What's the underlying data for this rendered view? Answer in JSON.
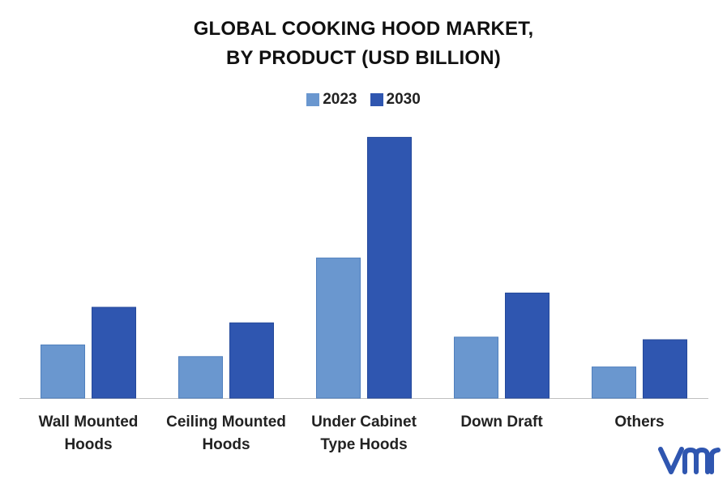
{
  "title": [
    "GLOBAL COOKING HOOD MARKET,",
    "BY PRODUCT (USD BILLION)"
  ],
  "legend": [
    {
      "label": "2023",
      "color": "#6a97cf"
    },
    {
      "label": "2030",
      "color": "#2f56b0"
    }
  ],
  "chart_data": {
    "type": "bar",
    "categories": [
      [
        "Wall Mounted",
        "Hoods"
      ],
      [
        "Ceiling Mounted",
        "Hoods"
      ],
      [
        "Under Cabinet",
        "Type Hoods"
      ],
      [
        "Down Draft"
      ],
      [
        "Others"
      ]
    ],
    "series": [
      {
        "name": "2023",
        "color": "#6a97cf",
        "values": [
          2.05,
          1.6,
          5.4,
          2.35,
          1.2
        ]
      },
      {
        "name": "2030",
        "color": "#2f56b0",
        "values": [
          3.5,
          2.9,
          10.05,
          4.05,
          2.25
        ]
      }
    ],
    "ylim": [
      0,
      10.5
    ],
    "grid": false,
    "legend_position": "top-center"
  },
  "logo_icon": "vmr-logo-icon"
}
